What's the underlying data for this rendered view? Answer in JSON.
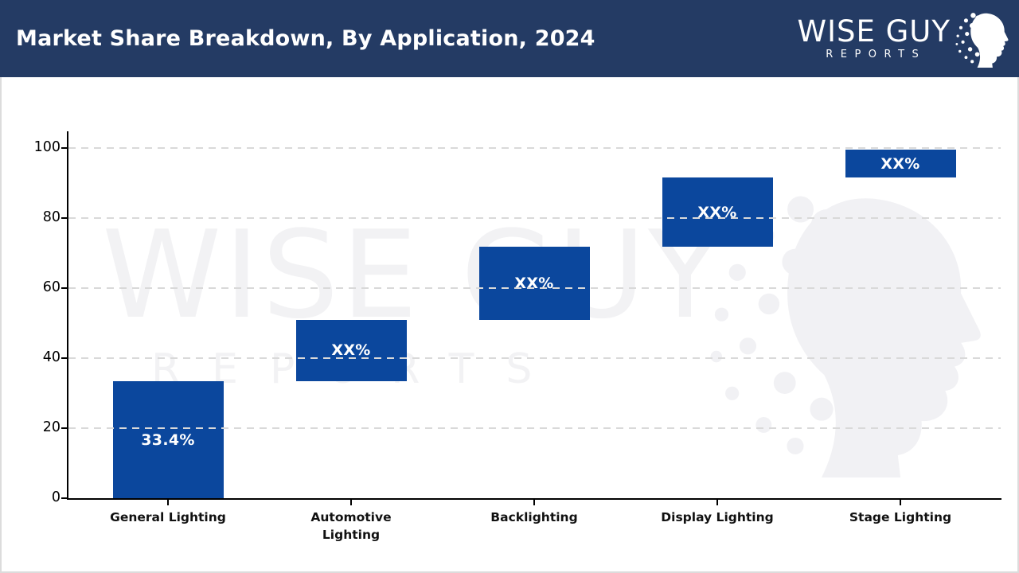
{
  "header": {
    "logo": {
      "line1": "WISE GUY",
      "line2": "REPORTS"
    }
  },
  "watermark": {
    "line1": "WISE GUY",
    "line2": "REPORTS"
  },
  "chart_data": {
    "type": "bar",
    "subtype": "waterfall",
    "title": "Market Share Breakdown, By Application, 2024",
    "categories": [
      "General Lighting",
      "Automotive\nLighting",
      "Backlighting",
      "Display Lighting",
      "Stage Lighting"
    ],
    "segments": [
      {
        "category": "General Lighting",
        "start": 0,
        "end": 33.4,
        "label": "33.4%"
      },
      {
        "category": "Automotive Lighting",
        "start": 33.4,
        "end": 51.0,
        "label": "XX%"
      },
      {
        "category": "Backlighting",
        "start": 51.0,
        "end": 71.8,
        "label": "XX%"
      },
      {
        "category": "Display Lighting",
        "start": 71.8,
        "end": 91.5,
        "label": "XX%"
      },
      {
        "category": "Stage Lighting",
        "start": 91.5,
        "end": 99.6,
        "label": "XX%"
      }
    ],
    "yticks": [
      0,
      20,
      40,
      60,
      80,
      100
    ],
    "ylim": [
      0,
      105
    ],
    "xlabel": "",
    "ylabel": "",
    "legend": "none",
    "grid": "horizontal-dashed",
    "colors": {
      "bar": "#0B479D",
      "grid": "#D9D9D9",
      "axis": "#000000",
      "header_bg": "#243B64",
      "bar_value_text": "#FFFFFF",
      "watermark": "#F2F2F4"
    }
  }
}
